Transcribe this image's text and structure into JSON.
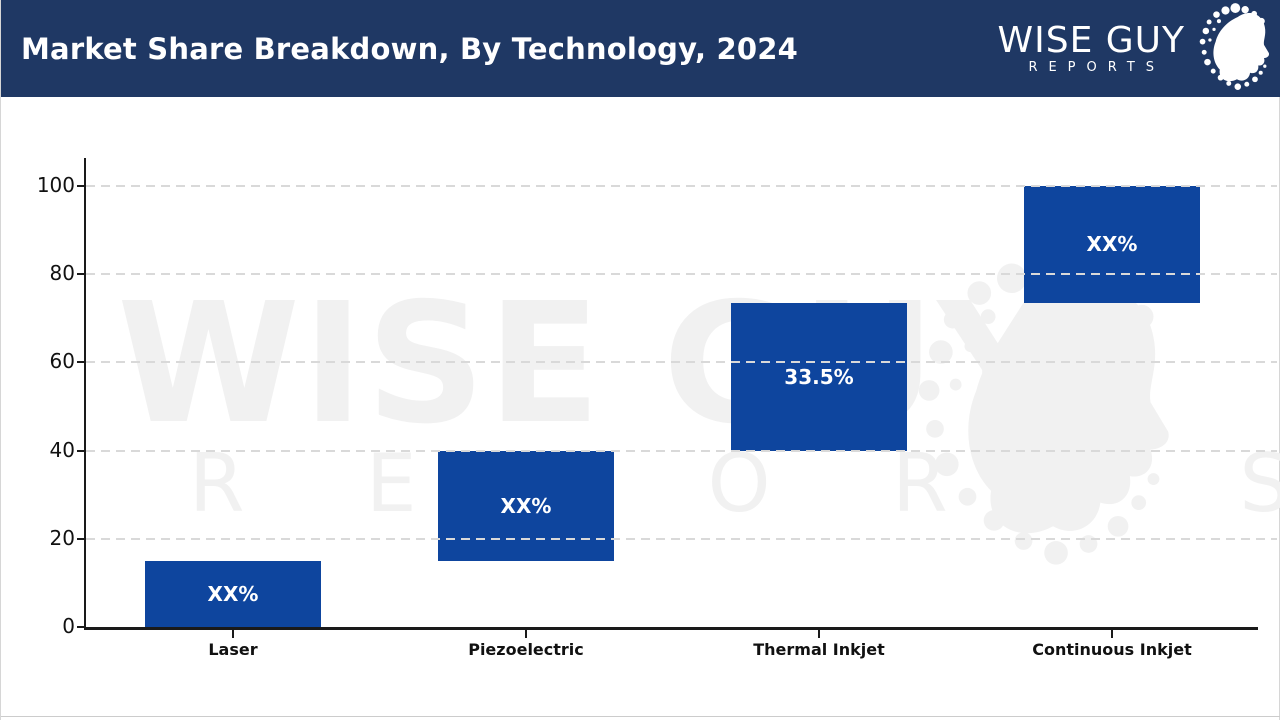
{
  "page": {
    "background": "#ffffff",
    "edge_border_color": "#d6d6d6"
  },
  "header": {
    "bg_color": "#1f3864",
    "title": "Market Share Breakdown, By Technology, 2024",
    "logo": {
      "line1": "WISE GUY",
      "line2": "REPORTS"
    }
  },
  "watermark": {
    "line1": "WISE GUY",
    "line2": "R E P O R T S",
    "color": "#f1f1f1"
  },
  "chart_data": {
    "type": "bar",
    "subtype": "waterfall",
    "title": "Market Share Breakdown, By Technology, 2024",
    "categories": [
      "Laser",
      "Piezoelectric",
      "Thermal Inkjet",
      "Continuous Inkjet"
    ],
    "series": [
      {
        "name": "Market share (%)",
        "segments": [
          {
            "category": "Laser",
            "start": 0,
            "end": 15,
            "label": "XX%"
          },
          {
            "category": "Piezoelectric",
            "start": 15,
            "end": 40,
            "label": "XX%"
          },
          {
            "category": "Thermal Inkjet",
            "start": 40,
            "end": 73.5,
            "label": "33.5%"
          },
          {
            "category": "Continuous Inkjet",
            "start": 73.5,
            "end": 100,
            "label": "XX%"
          }
        ]
      }
    ],
    "xlabel": "",
    "ylabel": "",
    "ylim": [
      0,
      106
    ],
    "yticks": [
      0,
      20,
      40,
      60,
      80,
      100
    ],
    "grid": "horizontal-dashed",
    "grid_color": "#d9d9d9",
    "legend": "none",
    "bar_color": "#0e459e",
    "bar_label_color": "#ffffff",
    "axis_color": "#1a1a1a"
  }
}
